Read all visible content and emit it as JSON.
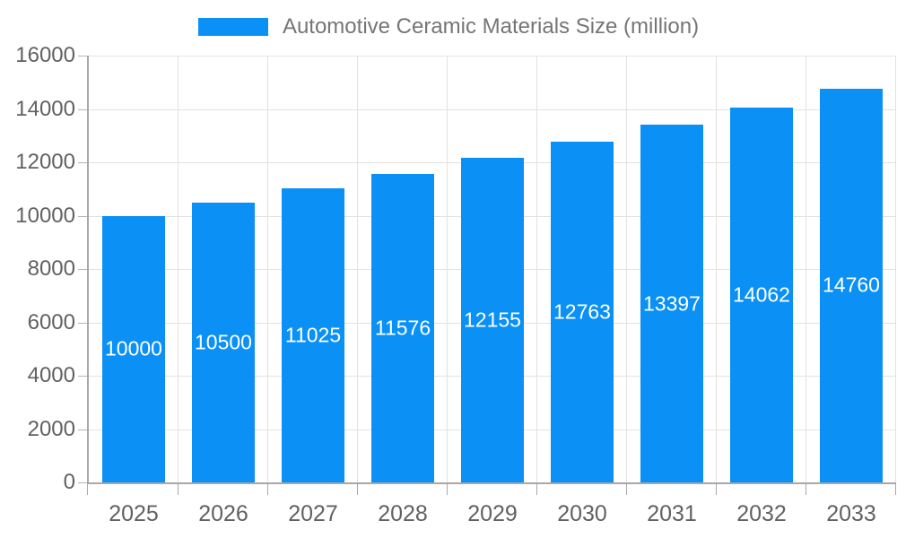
{
  "chart_data": {
    "type": "bar",
    "title": "Automotive Ceramic Materials Size (million)",
    "categories": [
      "2025",
      "2026",
      "2027",
      "2028",
      "2029",
      "2030",
      "2031",
      "2032",
      "2033"
    ],
    "values": [
      10000,
      10500,
      11025,
      11576,
      12155,
      12763,
      13397,
      14062,
      14760
    ],
    "xlabel": "",
    "ylabel": "",
    "ylim": [
      0,
      16000
    ],
    "ytick_step": 2000,
    "grid": true,
    "legend_position": "top-center",
    "bar_color": "#0b90f6",
    "bar_label_color": "#ffffff",
    "axis_line_color": "#a8a8a8",
    "gridline_color": "#e2e2e2",
    "axis_text_color": "#616161",
    "legend_text_color": "#757575",
    "background_color": "#ffffff"
  }
}
